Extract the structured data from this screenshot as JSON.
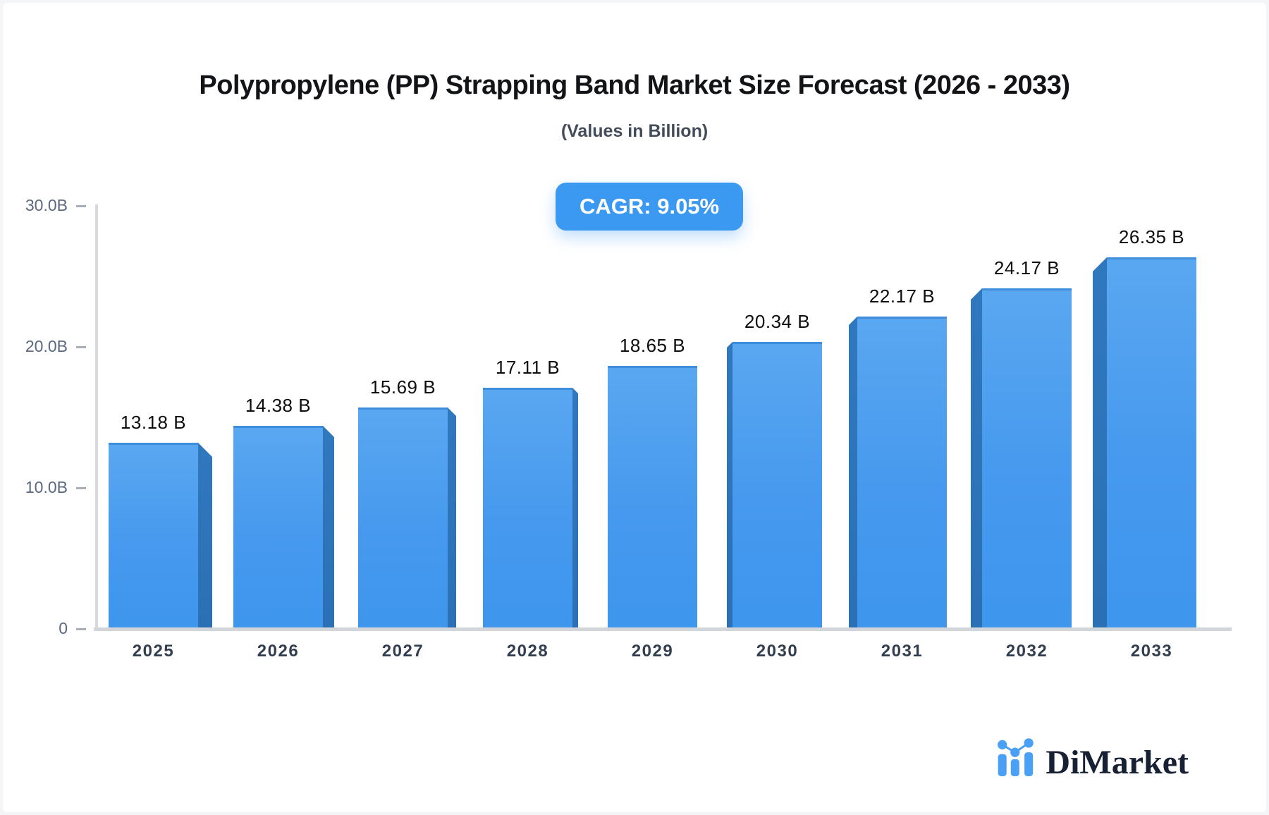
{
  "page": {
    "title": "Polypropylene (PP) Strapping Band Market Size Forecast (2026 - 2033)",
    "subtitle": "(Values in Billion)"
  },
  "badge": {
    "label": "CAGR: 9.05%"
  },
  "chart_data": {
    "type": "bar",
    "title": "Polypropylene (PP) Strapping Band Market Size Forecast (2026 - 2033)",
    "subtitle": "(Values in Billion)",
    "categories": [
      "2025",
      "2026",
      "2027",
      "2028",
      "2029",
      "2030",
      "2031",
      "2032",
      "2033"
    ],
    "values": [
      13.18,
      14.38,
      15.69,
      17.11,
      18.65,
      20.34,
      22.17,
      24.17,
      26.35
    ],
    "value_labels": [
      "13.18 B",
      "14.38 B",
      "15.69 B",
      "17.11 B",
      "18.65 B",
      "20.34 B",
      "22.17 B",
      "24.17 B",
      "26.35 B"
    ],
    "xlabel": "",
    "ylabel": "",
    "ylim": [
      0,
      30
    ],
    "yticks": [
      {
        "label": "30.0B",
        "value": 30
      },
      {
        "label": "20.0B",
        "value": 20
      },
      {
        "label": "10.0B",
        "value": 10
      },
      {
        "label": "0",
        "value": 0
      }
    ],
    "grid": false,
    "legend": false,
    "style": "3d-perspective-bars",
    "bar_face_color": "#4699ee",
    "bar_side_color": "#2b70b4",
    "cagr": "9.05%"
  },
  "branding": {
    "name": "DiMarket",
    "icon": "bar-line-chart-icon",
    "icon_color": "#4aa0f5",
    "text_color": "#182133"
  },
  "colors": {
    "badge_bg": "#3b99f2",
    "axis": "#d6dade",
    "tick": "#a7afb9",
    "y_label": "#5a6980",
    "x_label": "#323e4f",
    "title": "#121417",
    "subtitle": "#434c5b"
  }
}
